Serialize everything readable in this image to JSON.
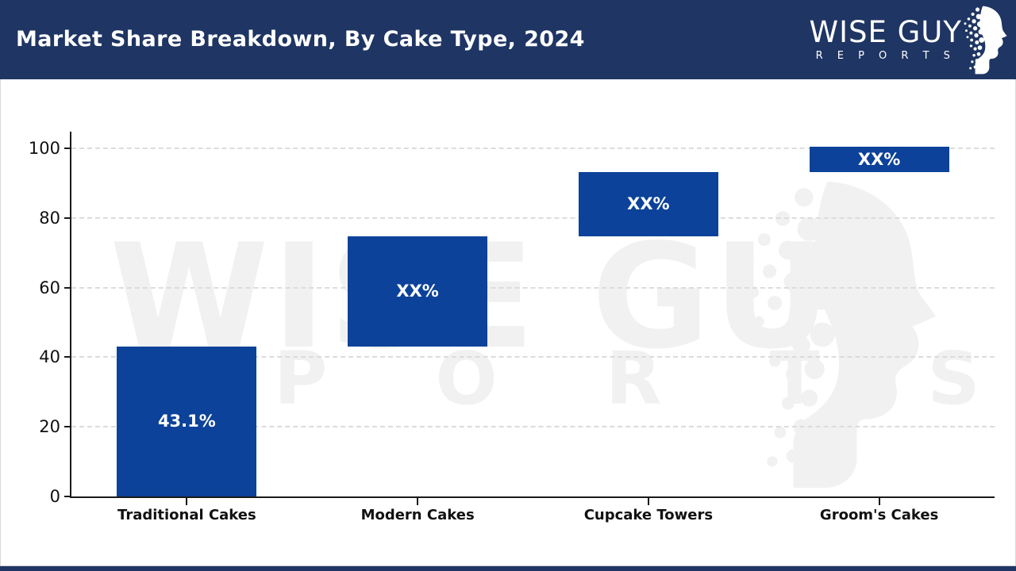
{
  "header": {
    "title": "Market Share Breakdown, By Cake Type, 2024",
    "logo": {
      "line1": "WISE GUY",
      "line2": "R E P O R T S"
    }
  },
  "watermark": {
    "line1": "WISE GU",
    "line2": "P O R T S"
  },
  "chart_data": {
    "type": "bar",
    "subtype": "waterfall",
    "title": "Market Share Breakdown, By Cake Type, 2024",
    "categories": [
      "Traditional Cakes",
      "Modern Cakes",
      "Cupcake Towers",
      "Groom's Cakes"
    ],
    "segments": [
      {
        "category": "Traditional Cakes",
        "start": 0,
        "end": 43.1,
        "label": "43.1%"
      },
      {
        "category": "Modern Cakes",
        "start": 43.1,
        "end": 74.7,
        "label": "XX%"
      },
      {
        "category": "Cupcake Towers",
        "start": 74.7,
        "end": 93.2,
        "label": "XX%"
      },
      {
        "category": "Groom's Cakes",
        "start": 93.2,
        "end": 100.4,
        "label": "XX%"
      }
    ],
    "xlabel": "",
    "ylabel": "",
    "yticks": [
      0,
      20,
      40,
      60,
      80,
      100
    ],
    "ylim": [
      0,
      105
    ],
    "grid": "horizontal-dashed",
    "legend": "none",
    "bar_color": "#0c4299",
    "bar_label_color": "#ffffff"
  },
  "colors": {
    "header_bg": "#1f3563",
    "bar": "#0c4299",
    "watermark": "#f1f1f1",
    "grid": "#dcdcdc",
    "axis": "#1a1a1a",
    "text": "#111111"
  }
}
